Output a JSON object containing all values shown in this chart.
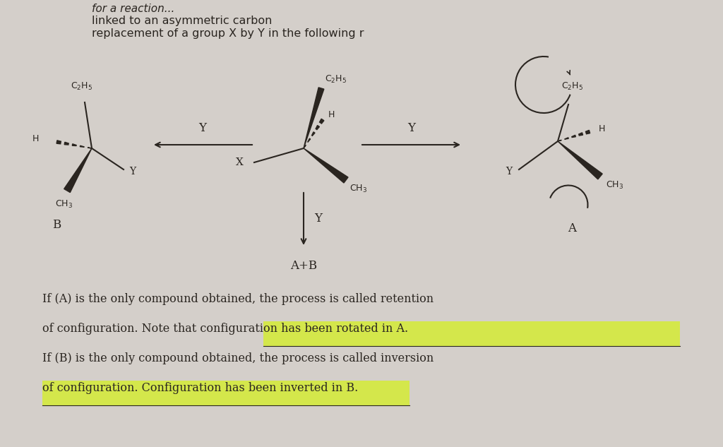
{
  "bg_color": "#d4cfca",
  "page_color": "#e8e4df",
  "text_color": "#2a2520",
  "highlight_color": "#d4f020",
  "header1": "for a reaction...",
  "header2": "linked to an asymmetric carbon",
  "header3": "replacement of a group X by Y in the following r",
  "para1": "If (A) is the only compound obtained, the process is called retention",
  "para2": "of configuration. Note that configuration has been rotated in A.",
  "para3": "If (B) is the only compound obtained, the process is called inversion",
  "para4": "of configuration. Configuration has been inverted in B.",
  "label_B": "B",
  "label_A": "A",
  "label_AB": "A+B",
  "arrow_label": "Y"
}
